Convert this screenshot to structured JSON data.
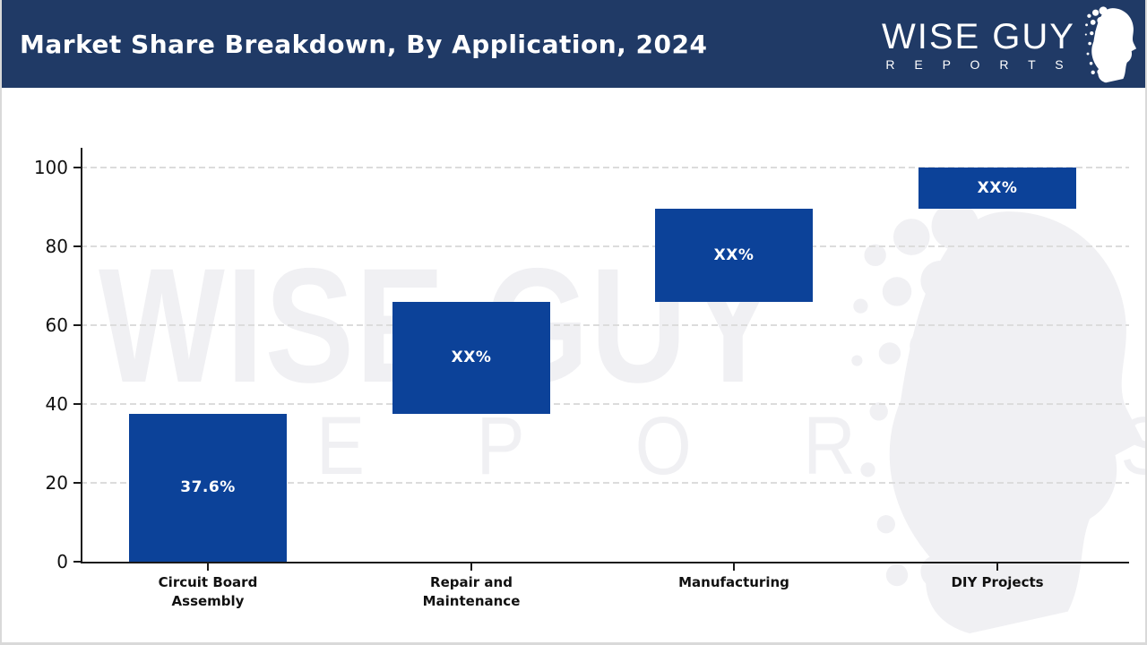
{
  "header": {
    "title": "Market Share Breakdown, By Application, 2024"
  },
  "logo": {
    "line1": "WISE GUY",
    "line2": "R E P O R T S"
  },
  "watermark": {
    "line1": "WISE GUY",
    "line2": "R E P O R T S"
  },
  "chart_data": {
    "type": "bar",
    "subtype": "waterfall-floating-bars",
    "title": "Market Share Breakdown, By Application, 2024",
    "categories": [
      "Circuit Board Assembly",
      "Repair and Maintenance",
      "Manufacturing",
      "DIY Projects"
    ],
    "category_lines": [
      [
        "Circuit Board",
        "Assembly"
      ],
      [
        "Repair and",
        "Maintenance"
      ],
      [
        "Manufacturing"
      ],
      [
        "DIY Projects"
      ]
    ],
    "bars": [
      {
        "category": "Circuit Board Assembly",
        "start": 0,
        "end": 37.6,
        "label": "37.6%"
      },
      {
        "category": "Repair and Maintenance",
        "start": 37.6,
        "end": 66,
        "label": "XX%"
      },
      {
        "category": "Manufacturing",
        "start": 66,
        "end": 89.5,
        "label": "XX%"
      },
      {
        "category": "DIY Projects",
        "start": 89.5,
        "end": 100,
        "label": "XX%"
      }
    ],
    "yticks": [
      0,
      20,
      40,
      60,
      80,
      100
    ],
    "ylim": [
      0,
      100
    ],
    "xlabel": "",
    "ylabel": "",
    "grid": "horizontal-dashed",
    "legend": "none",
    "bar_color": "#0c4299",
    "bar_label_color": "#ffffff"
  },
  "colors": {
    "header_bg": "#203a66",
    "header_text": "#ffffff",
    "bar": "#0c4299",
    "grid": "#dcdcdc",
    "axis": "#1a1a1a",
    "watermark": "#f0f0f3",
    "border": "#d9d9d9"
  }
}
